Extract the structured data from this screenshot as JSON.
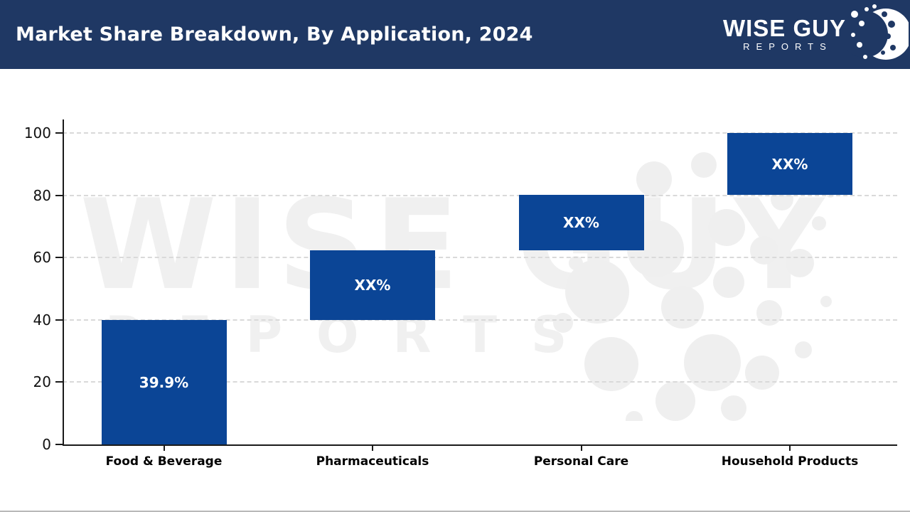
{
  "header": {
    "title": "Market Share Breakdown, By Application, 2024",
    "bg_color": "#1f3864",
    "logo": {
      "line1": "WISE GUY",
      "line2": "REPORTS"
    }
  },
  "watermark": {
    "line1": "WISE GUY",
    "line2": "REPORTS"
  },
  "chart_data": {
    "type": "bar",
    "subtype": "waterfall",
    "title": "Market Share Breakdown, By Application, 2024",
    "categories": [
      "Food & Beverage",
      "Pharmaceuticals",
      "Personal Care",
      "Household Products"
    ],
    "segments": [
      {
        "category": "Food & Beverage",
        "start": 0,
        "end": 39.9,
        "label": "39.9%"
      },
      {
        "category": "Pharmaceuticals",
        "start": 39.9,
        "end": 62.3,
        "label": "XX%"
      },
      {
        "category": "Personal Care",
        "start": 62.3,
        "end": 80.1,
        "label": "XX%"
      },
      {
        "category": "Household Products",
        "start": 80.1,
        "end": 100,
        "label": "XX%"
      }
    ],
    "yticks": [
      0,
      20,
      40,
      60,
      80,
      100
    ],
    "ylim": [
      0,
      104
    ],
    "xlabel": "",
    "ylabel": "",
    "grid": "horizontal-dashed",
    "legend": "none",
    "bar_color": "#0b4596",
    "label_color": "#ffffff",
    "axis_color": "#1a1a1a",
    "grid_color": "#d9d9d9"
  }
}
